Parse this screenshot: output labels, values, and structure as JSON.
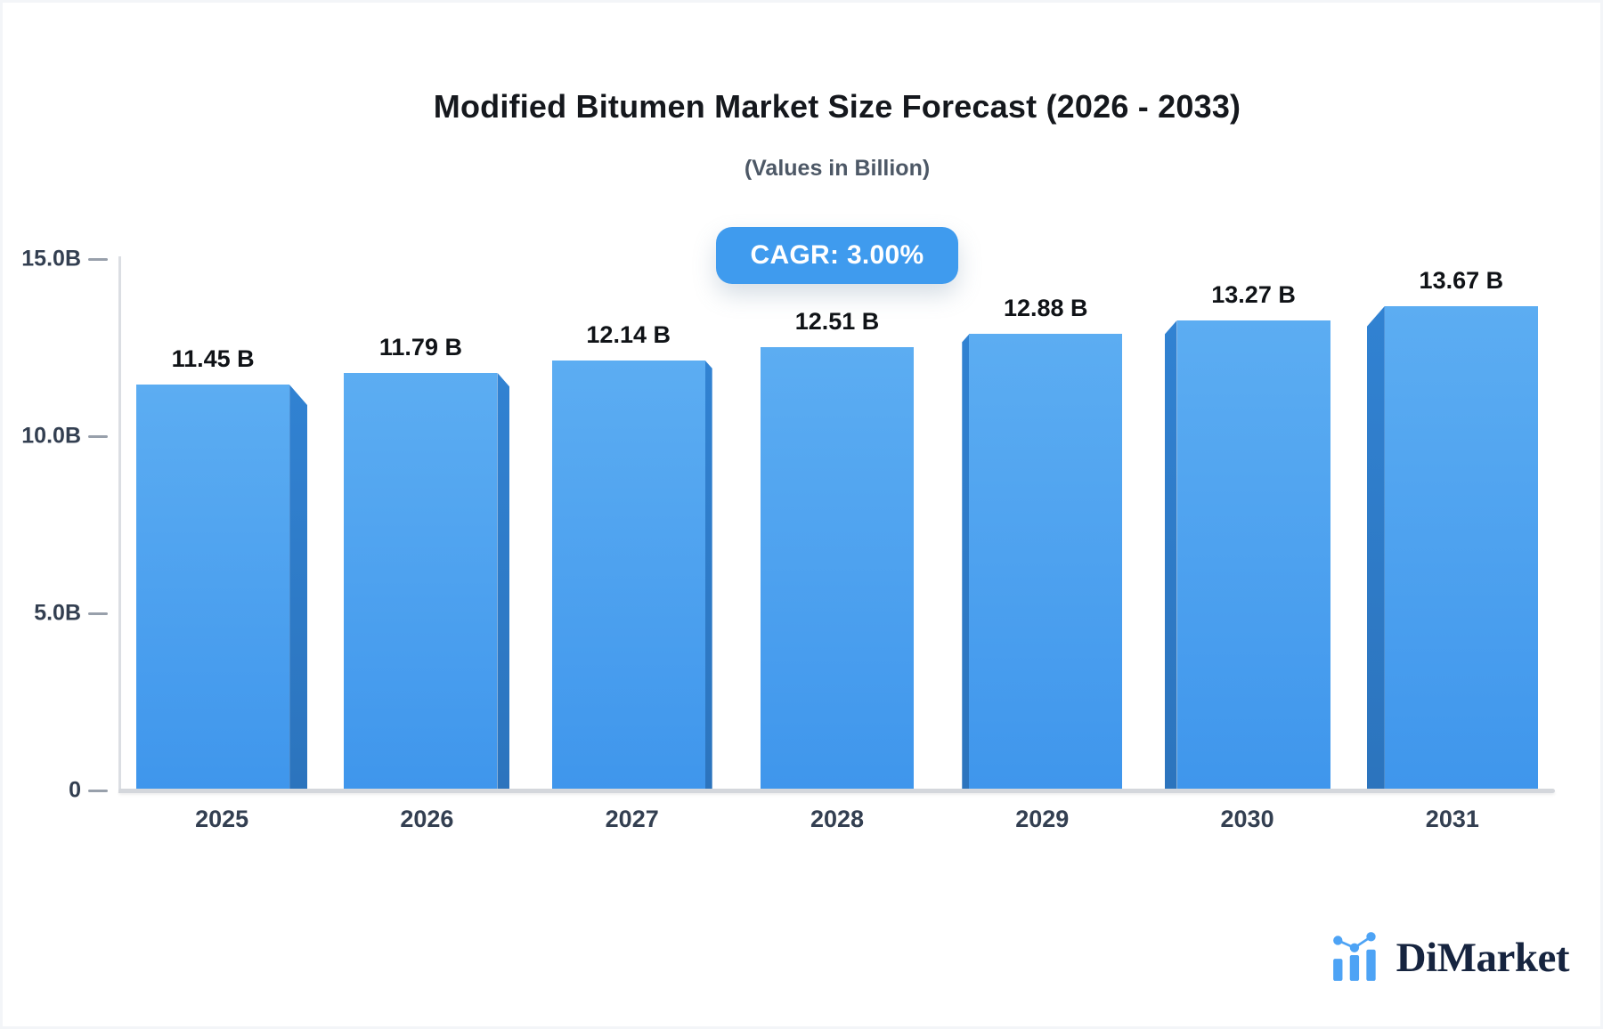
{
  "header": {
    "title": "Modified Bitumen Market Size Forecast (2026 - 2033)",
    "subtitle": "(Values in Billion)"
  },
  "badge": {
    "label": "CAGR: 3.00%",
    "bg_color": "#3f9bee"
  },
  "chart_data": {
    "type": "bar",
    "categories": [
      "2025",
      "2026",
      "2027",
      "2028",
      "2029",
      "2030",
      "2031"
    ],
    "values": [
      11.45,
      11.79,
      12.14,
      12.51,
      12.88,
      13.27,
      13.67
    ],
    "value_labels": [
      "11.45 B",
      "11.79 B",
      "12.14 B",
      "12.51 B",
      "12.88 B",
      "13.27 B",
      "13.67 B"
    ],
    "title": "Modified Bitumen Market Size Forecast (2026 - 2033)",
    "xlabel": "",
    "ylabel": "",
    "ylim": [
      0,
      15
    ],
    "yticks": [
      {
        "value": 15,
        "label": "15.0B"
      },
      {
        "value": 10,
        "label": "10.0B"
      },
      {
        "value": 5,
        "label": "5.0B"
      },
      {
        "value": 0,
        "label": "0"
      }
    ],
    "grid": false,
    "legend": false,
    "style": "3d-perspective-bars",
    "bar_front_top_color": "#5cadf2",
    "bar_front_bottom_color": "#3f96ec",
    "bar_side_color": "#2d76c1"
  },
  "logo": {
    "text": "DiMarket",
    "icon": "bar-chart-logo-icon",
    "icon_color": "#4da3f5",
    "text_color": "#16243f"
  }
}
